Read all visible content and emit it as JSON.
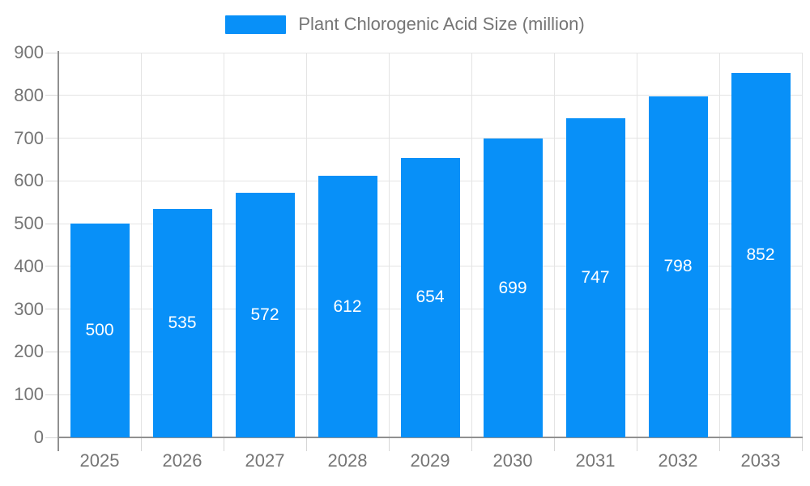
{
  "chart_data": {
    "type": "bar",
    "title": "Plant Chlorogenic Acid Size (million)",
    "categories": [
      "2025",
      "2026",
      "2027",
      "2028",
      "2029",
      "2030",
      "2031",
      "2032",
      "2033"
    ],
    "values": [
      500,
      535,
      572,
      612,
      654,
      699,
      747,
      798,
      852
    ],
    "xlabel": "",
    "ylabel": "",
    "ylim": [
      0,
      900
    ],
    "y_tick_step": 100,
    "grid": true,
    "legend_position": "top",
    "bar_color": "#0890F8",
    "value_label_color": "#FFFFFF"
  },
  "style": {
    "axis_line_color": "#909090",
    "grid_line_color": "#E4E4E4",
    "tick_mark_color": "#D6D6D6",
    "label_color": "#757575",
    "background_color": "#FFFFFF"
  }
}
